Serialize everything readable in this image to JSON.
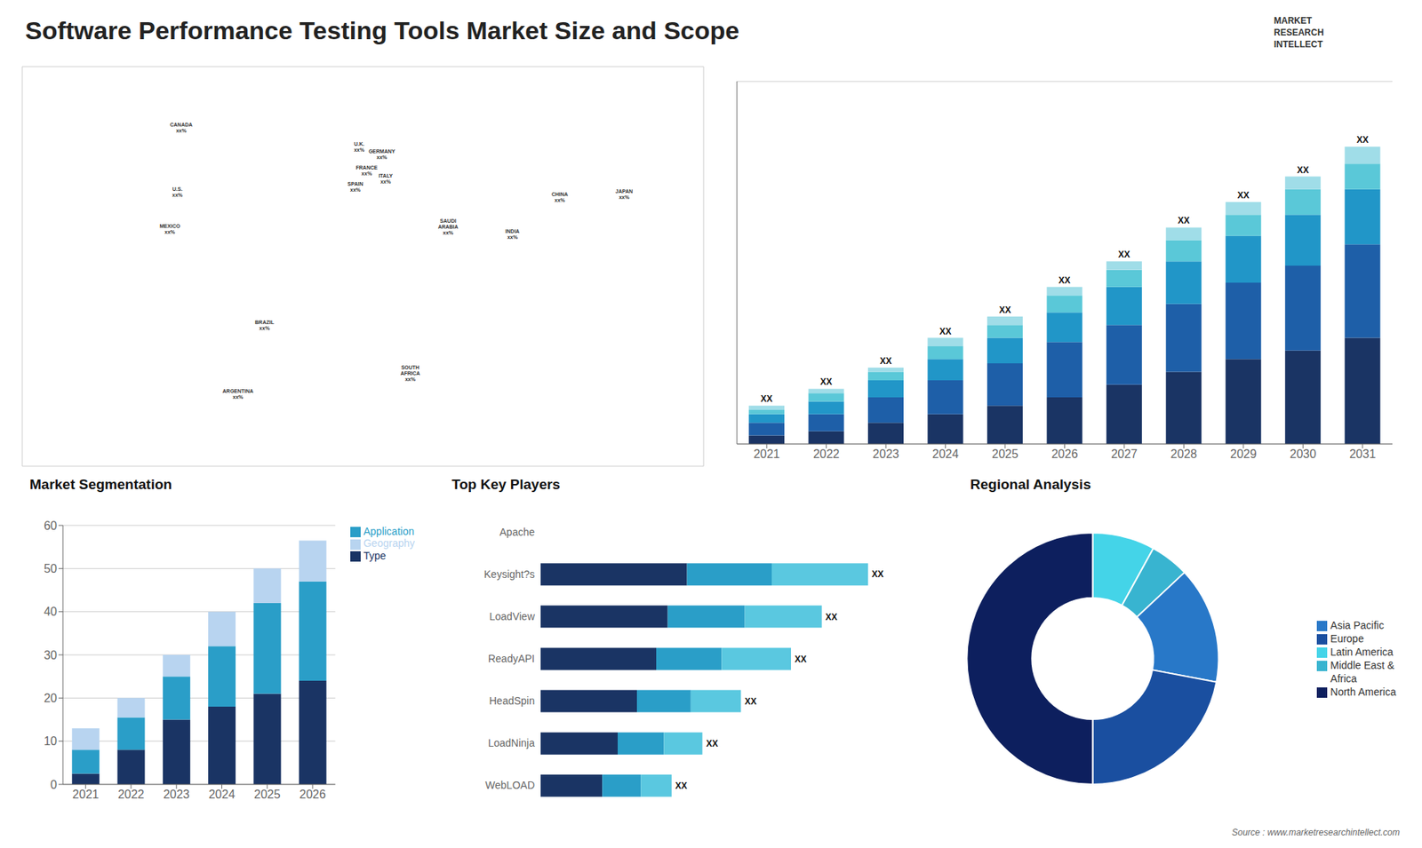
{
  "title": "Software Performance Testing Tools Market Size and Scope",
  "annotations": [
    "MARKET",
    "RESEARCH",
    "INTELLECT",
    "Source : www.marketresearchintellect.com"
  ],
  "chart_data": [
    {
      "type": "map",
      "xlim": [
        -180,
        180
      ],
      "ylim": [
        -65,
        85
      ],
      "tick_labels": false,
      "annotations": [
        {
          "text": "U.S.\nxx%",
          "x": -98,
          "y": 38
        },
        {
          "text": "CANADA\nxx%",
          "x": -96,
          "y": 62
        },
        {
          "text": "MEXICO\nxx%",
          "x": -102,
          "y": 24
        },
        {
          "text": "BRAZIL\nxx%",
          "x": -52,
          "y": -12
        },
        {
          "text": "ARGENTINA\nxx%",
          "x": -66,
          "y": -38
        },
        {
          "text": "U.K.\nxx%",
          "x": -2,
          "y": 55
        },
        {
          "text": "FRANCE\nxx%",
          "x": 2,
          "y": 46
        },
        {
          "text": "GERMANY\nxx%",
          "x": 10,
          "y": 52
        },
        {
          "text": "SPAIN\nxx%",
          "x": -4,
          "y": 40
        },
        {
          "text": "ITALY\nxx%",
          "x": 12,
          "y": 43
        },
        {
          "text": "CHINA\nxx%",
          "x": 104,
          "y": 36
        },
        {
          "text": "JAPAN\nxx%",
          "x": 138,
          "y": 37
        },
        {
          "text": "INDIA\nxx%",
          "x": 79,
          "y": 22
        },
        {
          "text": "SAUDI\nARABIA\nxx%",
          "x": 45,
          "y": 25
        },
        {
          "text": "SOUTH\nAFRICA\nxx%",
          "x": 25,
          "y": -30
        }
      ]
    },
    {
      "type": "bar",
      "stacked": true,
      "categories": [
        "2021",
        "2022",
        "2023",
        "2024",
        "2025",
        "2026",
        "2027",
        "2028",
        "2029",
        "2030",
        "2031"
      ],
      "series": [
        {
          "color": "#1a3464",
          "values": [
            2,
            3,
            5,
            7,
            9,
            11,
            14,
            17,
            20,
            22,
            25
          ]
        },
        {
          "color": "#1e5fa8",
          "values": [
            3,
            4,
            6,
            8,
            10,
            13,
            14,
            16,
            18,
            20,
            22
          ]
        },
        {
          "color": "#2196c8",
          "values": [
            2,
            3,
            4,
            5,
            6,
            7,
            9,
            10,
            11,
            12,
            13
          ]
        },
        {
          "color": "#5ac8d8",
          "values": [
            1,
            2,
            2,
            3,
            3,
            4,
            4,
            5,
            5,
            6,
            6
          ]
        },
        {
          "color": "#a0dde8",
          "values": [
            1,
            1,
            1,
            2,
            2,
            2,
            2,
            3,
            3,
            3,
            4
          ]
        }
      ],
      "annotations": [
        "XX",
        "XX",
        "XX",
        "XX",
        "XX",
        "XX",
        "XX",
        "XX",
        "XX",
        "XX",
        "XX"
      ],
      "ylim": [
        0,
        85.4
      ],
      "yticks": [
        0,
        10,
        20,
        30,
        40,
        50,
        60,
        70,
        80
      ],
      "grid": true,
      "tick_labels": "x"
    },
    {
      "type": "bar",
      "title": "Market Segmentation",
      "stacked": true,
      "categories": [
        "2021",
        "2022",
        "2023",
        "2024",
        "2025",
        "2026"
      ],
      "series": [
        {
          "name": "Type",
          "color": "#1a3464",
          "values": [
            2.5,
            8,
            15,
            18,
            21,
            24
          ]
        },
        {
          "name": "Application",
          "color": "#2a9ec8",
          "values": [
            5.5,
            7.5,
            10,
            14,
            21,
            23
          ]
        },
        {
          "name": "Geography",
          "color": "#b8d4f0",
          "values": [
            5,
            4.5,
            5,
            8,
            8,
            9.5
          ]
        }
      ],
      "ylim": [
        0,
        60
      ],
      "yticks": [
        0,
        10,
        20,
        30,
        40,
        50,
        60
      ],
      "grid": true,
      "legend": "right"
    },
    {
      "type": "bar",
      "title": "Top Key Players",
      "orientation": "horizontal",
      "stacked": true,
      "categories": [
        "Apache",
        "Keysight?s",
        "LoadView",
        "ReadyAPI",
        "HeadSpin",
        "LoadNinja",
        "WebLOAD"
      ],
      "series": [
        {
          "color": "#1a3464",
          "values": [
            null,
            38,
            33,
            30,
            25,
            20,
            16
          ]
        },
        {
          "color": "#2a9ec8",
          "values": [
            null,
            22,
            20,
            17,
            14,
            12,
            10
          ]
        },
        {
          "color": "#5ac8e0",
          "values": [
            null,
            25,
            20,
            18,
            13,
            10,
            8
          ]
        }
      ],
      "annotations": [
        null,
        "XX",
        "XX",
        "XX",
        "XX",
        "XX",
        "XX"
      ],
      "xlim": [
        0,
        100
      ],
      "tick_labels": "y"
    },
    {
      "type": "pie",
      "title": "Regional Analysis",
      "categories": [
        "Latin America",
        "Middle East &\nAfrica",
        "Asia Pacific",
        "Europe",
        "North America"
      ],
      "values": [
        8,
        5,
        15,
        22,
        50
      ],
      "colors": [
        "#44d4e8",
        "#38b4d0",
        "#2878c8",
        "#1a4fa0",
        "#0d1f5e"
      ],
      "legend": "right"
    }
  ]
}
